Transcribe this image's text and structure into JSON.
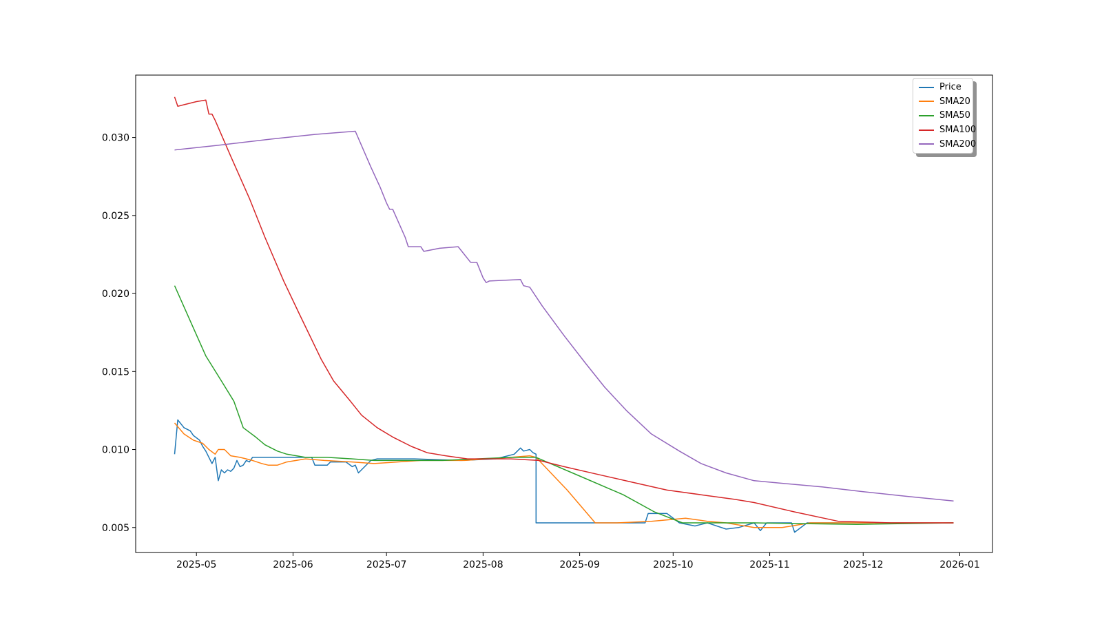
{
  "figure": {
    "background": "#ffffff",
    "plot_border_color": "#000000"
  },
  "chart_data": {
    "type": "line",
    "title": "",
    "xlabel": "",
    "ylabel": "",
    "grid": false,
    "legend_position": "upper right",
    "x_tick_dates": [
      "2025-05-01",
      "2025-06-01",
      "2025-07-01",
      "2025-08-01",
      "2025-09-01",
      "2025-10-01",
      "2025-11-01",
      "2025-12-01",
      "2026-01-01"
    ],
    "x_tick_labels": [
      "2025-05",
      "2025-06",
      "2025-07",
      "2025-08",
      "2025-09",
      "2025-10",
      "2025-11",
      "2025-12",
      "2026-01"
    ],
    "y_ticks": [
      0.005,
      0.01,
      0.015,
      0.02,
      0.025,
      0.03
    ],
    "y_tick_labels": [
      "0.005",
      "0.010",
      "0.015",
      "0.020",
      "0.025",
      "0.030"
    ],
    "xlim_days_from_2025_05_01": [
      -19.5,
      255.5
    ],
    "ylim": [
      0.0034,
      0.034
    ],
    "series": [
      {
        "name": "Price",
        "color": "#1f77b4",
        "points": [
          [
            "2025-04-24",
            0.0097
          ],
          [
            "2025-04-25",
            0.0119
          ],
          [
            "2025-04-27",
            0.0114
          ],
          [
            "2025-04-29",
            0.0112
          ],
          [
            "2025-04-30",
            0.0109
          ],
          [
            "2025-05-02",
            0.0106
          ],
          [
            "2025-05-03",
            0.0102
          ],
          [
            "2025-05-04",
            0.0099
          ],
          [
            "2025-05-06",
            0.0091
          ],
          [
            "2025-05-07",
            0.0095
          ],
          [
            "2025-05-08",
            0.008
          ],
          [
            "2025-05-09",
            0.0087
          ],
          [
            "2025-05-10",
            0.0085
          ],
          [
            "2025-05-11",
            0.0087
          ],
          [
            "2025-05-12",
            0.0086
          ],
          [
            "2025-05-13",
            0.0088
          ],
          [
            "2025-05-14",
            0.0093
          ],
          [
            "2025-05-15",
            0.0089
          ],
          [
            "2025-05-16",
            0.009
          ],
          [
            "2025-05-17",
            0.0093
          ],
          [
            "2025-05-18",
            0.0092
          ],
          [
            "2025-05-19",
            0.0095
          ],
          [
            "2025-05-30",
            0.0095
          ],
          [
            "2025-06-07",
            0.0095
          ],
          [
            "2025-06-08",
            0.009
          ],
          [
            "2025-06-12",
            0.009
          ],
          [
            "2025-06-13",
            0.0092
          ],
          [
            "2025-06-18",
            0.0092
          ],
          [
            "2025-06-20",
            0.0089
          ],
          [
            "2025-06-21",
            0.009
          ],
          [
            "2025-06-22",
            0.0085
          ],
          [
            "2025-06-24",
            0.0089
          ],
          [
            "2025-06-26",
            0.0093
          ],
          [
            "2025-06-28",
            0.0094
          ],
          [
            "2025-07-10",
            0.0094
          ],
          [
            "2025-07-25",
            0.0093
          ],
          [
            "2025-08-05",
            0.0094
          ],
          [
            "2025-08-11",
            0.0097
          ],
          [
            "2025-08-13",
            0.0101
          ],
          [
            "2025-08-14",
            0.0099
          ],
          [
            "2025-08-16",
            0.01
          ],
          [
            "2025-08-17",
            0.0098
          ],
          [
            "2025-08-18",
            0.0097
          ],
          [
            "2025-08-18",
            0.0053
          ],
          [
            "2025-09-22",
            0.0053
          ],
          [
            "2025-09-23",
            0.0059
          ],
          [
            "2025-09-29",
            0.0059
          ],
          [
            "2025-10-03",
            0.0053
          ],
          [
            "2025-10-08",
            0.0051
          ],
          [
            "2025-10-12",
            0.0053
          ],
          [
            "2025-10-18",
            0.0049
          ],
          [
            "2025-10-22",
            0.005
          ],
          [
            "2025-10-27",
            0.0053
          ],
          [
            "2025-10-29",
            0.0048
          ],
          [
            "2025-10-31",
            0.0053
          ],
          [
            "2025-11-08",
            0.0053
          ],
          [
            "2025-11-09",
            0.0047
          ],
          [
            "2025-11-13",
            0.0053
          ],
          [
            "2025-12-30",
            0.0053
          ]
        ]
      },
      {
        "name": "SMA20",
        "color": "#ff7f0e",
        "points": [
          [
            "2025-04-24",
            0.0117
          ],
          [
            "2025-04-27",
            0.011
          ],
          [
            "2025-04-30",
            0.0106
          ],
          [
            "2025-05-03",
            0.0104
          ],
          [
            "2025-05-05",
            0.01
          ],
          [
            "2025-05-07",
            0.0097
          ],
          [
            "2025-05-08",
            0.01
          ],
          [
            "2025-05-10",
            0.01
          ],
          [
            "2025-05-12",
            0.0096
          ],
          [
            "2025-05-15",
            0.0095
          ],
          [
            "2025-05-19",
            0.0093
          ],
          [
            "2025-05-22",
            0.0091
          ],
          [
            "2025-05-24",
            0.009
          ],
          [
            "2025-05-27",
            0.009
          ],
          [
            "2025-05-30",
            0.0092
          ],
          [
            "2025-06-02",
            0.0093
          ],
          [
            "2025-06-05",
            0.0094
          ],
          [
            "2025-06-11",
            0.0093
          ],
          [
            "2025-06-20",
            0.0092
          ],
          [
            "2025-06-27",
            0.0091
          ],
          [
            "2025-07-12",
            0.0093
          ],
          [
            "2025-07-26",
            0.0093
          ],
          [
            "2025-08-10",
            0.0095
          ],
          [
            "2025-08-16",
            0.0096
          ],
          [
            "2025-08-18",
            0.0095
          ],
          [
            "2025-08-28",
            0.0074
          ],
          [
            "2025-09-06",
            0.0053
          ],
          [
            "2025-09-13",
            0.0053
          ],
          [
            "2025-09-24",
            0.0054
          ],
          [
            "2025-10-05",
            0.0056
          ],
          [
            "2025-10-12",
            0.0054
          ],
          [
            "2025-10-18",
            0.0053
          ],
          [
            "2025-10-27",
            0.005
          ],
          [
            "2025-11-05",
            0.005
          ],
          [
            "2025-11-14",
            0.0053
          ],
          [
            "2025-11-29",
            0.0053
          ],
          [
            "2025-12-30",
            0.0053
          ]
        ]
      },
      {
        "name": "SMA50",
        "color": "#2ca02c",
        "points": [
          [
            "2025-04-24",
            0.0205
          ],
          [
            "2025-04-30",
            0.0178
          ],
          [
            "2025-05-04",
            0.016
          ],
          [
            "2025-05-09",
            0.0144
          ],
          [
            "2025-05-13",
            0.0131
          ],
          [
            "2025-05-16",
            0.0114
          ],
          [
            "2025-05-20",
            0.0108
          ],
          [
            "2025-05-23",
            0.0103
          ],
          [
            "2025-05-27",
            0.0099
          ],
          [
            "2025-05-30",
            0.0097
          ],
          [
            "2025-06-05",
            0.0095
          ],
          [
            "2025-06-12",
            0.0095
          ],
          [
            "2025-06-20",
            0.0094
          ],
          [
            "2025-06-27",
            0.0093
          ],
          [
            "2025-07-19",
            0.0093
          ],
          [
            "2025-08-10",
            0.0095
          ],
          [
            "2025-08-18",
            0.0095
          ],
          [
            "2025-09-01",
            0.0083
          ],
          [
            "2025-09-15",
            0.0071
          ],
          [
            "2025-09-25",
            0.006
          ],
          [
            "2025-10-04",
            0.0053
          ],
          [
            "2025-10-27",
            0.0053
          ],
          [
            "2025-11-29",
            0.0052
          ],
          [
            "2025-12-30",
            0.0053
          ]
        ]
      },
      {
        "name": "SMA100",
        "color": "#d62728",
        "points": [
          [
            "2025-04-24",
            0.0326
          ],
          [
            "2025-04-25",
            0.032
          ],
          [
            "2025-04-27",
            0.0321
          ],
          [
            "2025-05-01",
            0.0323
          ],
          [
            "2025-05-04",
            0.0324
          ],
          [
            "2025-05-05",
            0.0315
          ],
          [
            "2025-05-06",
            0.0315
          ],
          [
            "2025-05-07",
            0.0311
          ],
          [
            "2025-05-12",
            0.0288
          ],
          [
            "2025-05-18",
            0.0261
          ],
          [
            "2025-05-23",
            0.0236
          ],
          [
            "2025-05-29",
            0.0208
          ],
          [
            "2025-06-03",
            0.0187
          ],
          [
            "2025-06-10",
            0.0158
          ],
          [
            "2025-06-14",
            0.0144
          ],
          [
            "2025-06-19",
            0.0132
          ],
          [
            "2025-06-23",
            0.0122
          ],
          [
            "2025-06-28",
            0.0114
          ],
          [
            "2025-07-03",
            0.0108
          ],
          [
            "2025-07-09",
            0.0102
          ],
          [
            "2025-07-14",
            0.0098
          ],
          [
            "2025-07-20",
            0.0096
          ],
          [
            "2025-07-27",
            0.0094
          ],
          [
            "2025-08-10",
            0.0094
          ],
          [
            "2025-08-19",
            0.0093
          ],
          [
            "2025-08-27",
            0.0089
          ],
          [
            "2025-09-07",
            0.0084
          ],
          [
            "2025-09-18",
            0.0079
          ],
          [
            "2025-09-29",
            0.0074
          ],
          [
            "2025-10-10",
            0.0071
          ],
          [
            "2025-10-21",
            0.0068
          ],
          [
            "2025-10-27",
            0.0066
          ],
          [
            "2025-11-09",
            0.006
          ],
          [
            "2025-11-23",
            0.0054
          ],
          [
            "2025-12-10",
            0.0053
          ],
          [
            "2025-12-30",
            0.0053
          ]
        ]
      },
      {
        "name": "SMA200",
        "color": "#9467bd",
        "points": [
          [
            "2025-04-24",
            0.0292
          ],
          [
            "2025-05-08",
            0.0295
          ],
          [
            "2025-05-25",
            0.0299
          ],
          [
            "2025-06-08",
            0.0302
          ],
          [
            "2025-06-21",
            0.0304
          ],
          [
            "2025-06-26",
            0.0281
          ],
          [
            "2025-06-29",
            0.0268
          ],
          [
            "2025-07-01",
            0.0258
          ],
          [
            "2025-07-02",
            0.0254
          ],
          [
            "2025-07-03",
            0.0254
          ],
          [
            "2025-07-07",
            0.0236
          ],
          [
            "2025-07-08",
            0.023
          ],
          [
            "2025-07-12",
            0.023
          ],
          [
            "2025-07-13",
            0.0227
          ],
          [
            "2025-07-18",
            0.0229
          ],
          [
            "2025-07-24",
            0.023
          ],
          [
            "2025-07-28",
            0.022
          ],
          [
            "2025-07-30",
            0.022
          ],
          [
            "2025-08-01",
            0.021
          ],
          [
            "2025-08-02",
            0.0207
          ],
          [
            "2025-08-03",
            0.0208
          ],
          [
            "2025-08-13",
            0.0209
          ],
          [
            "2025-08-14",
            0.0205
          ],
          [
            "2025-08-16",
            0.0204
          ],
          [
            "2025-08-20",
            0.0192
          ],
          [
            "2025-08-27",
            0.0173
          ],
          [
            "2025-09-03",
            0.0155
          ],
          [
            "2025-09-09",
            0.014
          ],
          [
            "2025-09-16",
            0.0125
          ],
          [
            "2025-09-24",
            0.011
          ],
          [
            "2025-10-03",
            0.0099
          ],
          [
            "2025-10-10",
            0.0091
          ],
          [
            "2025-10-18",
            0.0085
          ],
          [
            "2025-10-27",
            0.008
          ],
          [
            "2025-11-07",
            0.0078
          ],
          [
            "2025-11-18",
            0.0076
          ],
          [
            "2025-12-01",
            0.0073
          ],
          [
            "2025-12-15",
            0.007
          ],
          [
            "2025-12-30",
            0.0067
          ]
        ]
      }
    ]
  }
}
